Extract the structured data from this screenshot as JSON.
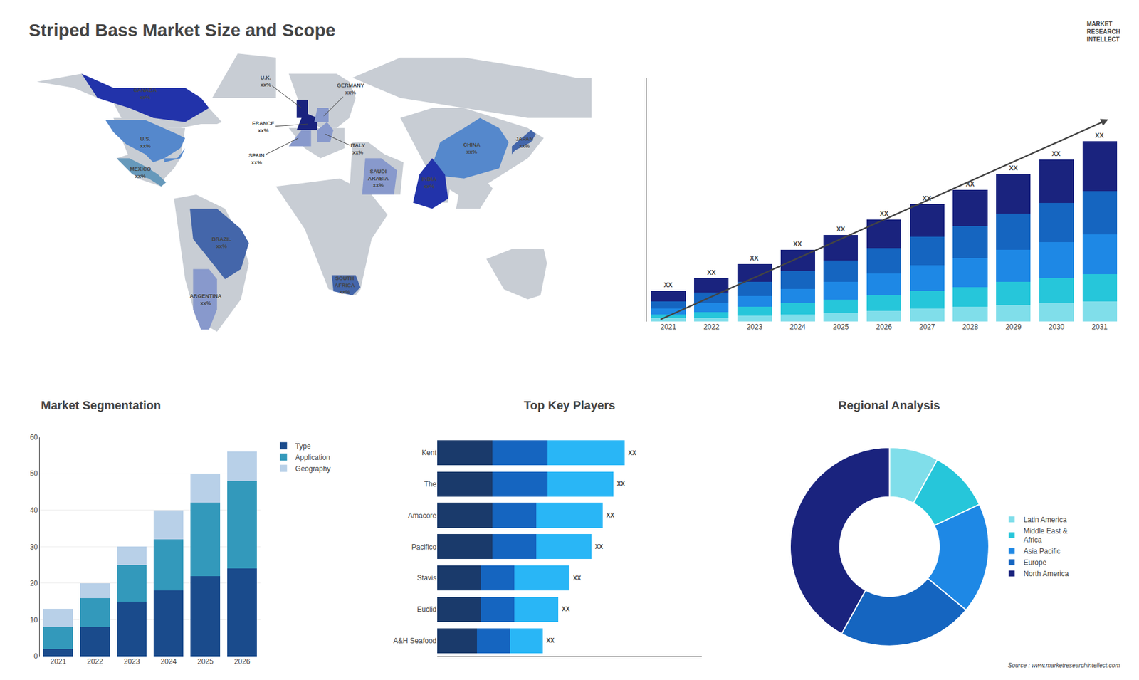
{
  "chart_data": [
    {
      "type": "map",
      "title": "Striped Bass Market Size and Scope",
      "color": "#c8cdd4",
      "categories": [
        "CANADA\nxx%",
        "U.S.\nxx%",
        "MEXICO\nxx%",
        "BRAZIL\nxx%",
        "ARGENTINA\nxx%",
        "U.K.\nxx%",
        "FRANCE\nxx%",
        "GERMANY\nxx%",
        "SPAIN\nxx%",
        "ITALY\nxx%",
        "SAUDI\nARABIA\nxx%",
        "SOUTH\nAFRICA\nxx%",
        "CHINA\nxx%",
        "INDIA\nxx%",
        "JAPAN\nxx%"
      ],
      "colors": [
        "#2233aa",
        "#5588cc",
        "#6699bb",
        "#4466aa",
        "#8899cc",
        "#1a237e",
        "#1a237e",
        "#8899cc",
        "#8899cc",
        "#8899cc",
        "#8899cc",
        "#4466aa",
        "#5588cc",
        "#2233aa",
        "#4466aa"
      ],
      "annotations": [
        "MARKET",
        "RESEARCH",
        "INTELLECT"
      ]
    },
    {
      "type": "bar",
      "stacked": true,
      "categories": [
        "2021",
        "2022",
        "2023",
        "2024",
        "2025",
        "2026",
        "2027",
        "2028",
        "2029",
        "2030",
        "2031"
      ],
      "series": [
        {
          "color": "#80deea",
          "values": [
            0.5,
            0.5,
            0.8,
            1.0,
            1.2,
            1.5,
            1.8,
            2.0,
            2.3,
            2.5,
            2.8
          ]
        },
        {
          "color": "#26c6da",
          "values": [
            0.5,
            0.8,
            1.2,
            1.5,
            1.8,
            2.2,
            2.5,
            2.8,
            3.2,
            3.5,
            3.8
          ]
        },
        {
          "color": "#1e88e5",
          "values": [
            0.8,
            1.2,
            1.5,
            2.0,
            2.5,
            3.0,
            3.5,
            4.0,
            4.5,
            5.0,
            5.5
          ]
        },
        {
          "color": "#1565c0",
          "values": [
            1.0,
            1.5,
            2.0,
            2.5,
            3.0,
            3.5,
            4.0,
            4.5,
            5.0,
            5.5,
            6.0
          ]
        },
        {
          "color": "#1a237e",
          "values": [
            1.5,
            2.0,
            2.5,
            3.0,
            3.5,
            4.0,
            4.5,
            5.0,
            5.5,
            6.0,
            7.0
          ]
        }
      ],
      "ylim": [
        0,
        33.885
      ],
      "yticks": [],
      "tick_labels": "x",
      "annotations": [
        "XX",
        "XX",
        "XX",
        "XX",
        "XX",
        "XX",
        "XX",
        "XX",
        "XX",
        "XX",
        "XX"
      ]
    },
    {
      "type": "bar",
      "title": "Market Segmentation",
      "stacked": true,
      "categories": [
        "2021",
        "2022",
        "2023",
        "2024",
        "2025",
        "2026"
      ],
      "series": [
        {
          "name": "Type",
          "color": "#1a4b8c",
          "values": [
            2,
            8,
            15,
            18,
            22,
            24
          ]
        },
        {
          "name": "Application",
          "color": "#3399bb",
          "values": [
            6,
            8,
            10,
            14,
            20,
            24
          ]
        },
        {
          "name": "Geography",
          "color": "#b8d0e8",
          "values": [
            5,
            4,
            5,
            8,
            8,
            8
          ]
        }
      ],
      "ylim": [
        0,
        60
      ],
      "yticks": [
        0,
        10,
        20,
        30,
        40,
        50,
        60
      ],
      "grid": true,
      "legend": "right"
    },
    {
      "type": "bar",
      "title": "Top Key Players",
      "orientation": "horizontal",
      "stacked": true,
      "categories": [
        "Kent",
        "The",
        "Amacore",
        "Pacifico",
        "Stavis",
        "Euclid",
        "A&H Seafood"
      ],
      "series": [
        {
          "color": "#1a3a6b",
          "values": [
            2.5,
            2.5,
            2.5,
            2.5,
            2.0,
            2.0,
            1.8
          ]
        },
        {
          "color": "#1565c0",
          "values": [
            2.5,
            2.5,
            2.0,
            2.0,
            1.5,
            1.5,
            1.5
          ]
        },
        {
          "color": "#29b6f6",
          "values": [
            3.5,
            3.0,
            3.0,
            2.5,
            2.5,
            2.0,
            1.5
          ]
        }
      ],
      "xlim": [
        0,
        12
      ],
      "xticks": [],
      "tick_labels": "y",
      "annotations": [
        "XX",
        "XX",
        "XX",
        "XX",
        "XX",
        "XX",
        "XX"
      ]
    },
    {
      "type": "pie",
      "title": "Regional Analysis",
      "categories": [
        "Latin America",
        "Middle East &\nAfrica",
        "Asia Pacific",
        "Europe",
        "North America"
      ],
      "values": [
        8,
        10,
        18,
        22,
        42
      ],
      "colors": [
        "#80deea",
        "#26c6da",
        "#1e88e5",
        "#1565c0",
        "#1a237e"
      ],
      "legend": "right",
      "annotations": [
        "Source : www.marketresearchintellect.com"
      ]
    }
  ]
}
